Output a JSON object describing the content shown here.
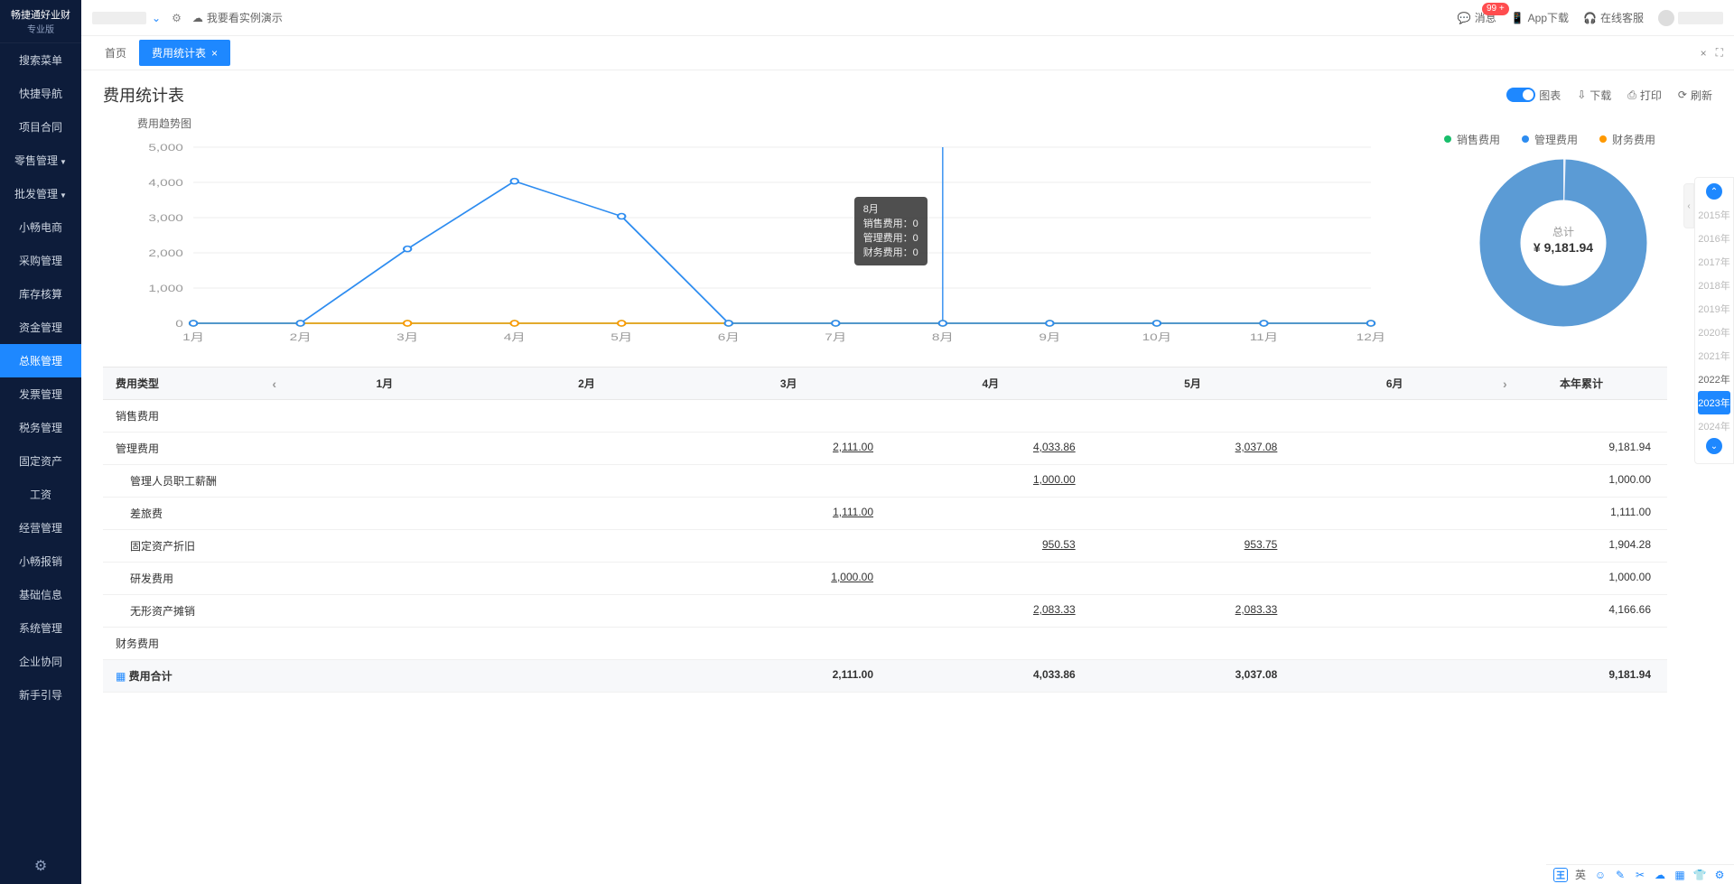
{
  "brand": {
    "name": "畅捷通好业财",
    "edition": "专业版"
  },
  "sidebar": {
    "items": [
      {
        "label": "搜索菜单",
        "has_sub": false
      },
      {
        "label": "快捷导航",
        "has_sub": false
      },
      {
        "label": "项目合同",
        "has_sub": false
      },
      {
        "label": "零售管理",
        "has_sub": true
      },
      {
        "label": "批发管理",
        "has_sub": true
      },
      {
        "label": "小畅电商",
        "has_sub": false
      },
      {
        "label": "采购管理",
        "has_sub": false
      },
      {
        "label": "库存核算",
        "has_sub": false
      },
      {
        "label": "资金管理",
        "has_sub": false
      },
      {
        "label": "总账管理",
        "has_sub": false,
        "active": true
      },
      {
        "label": "发票管理",
        "has_sub": false
      },
      {
        "label": "税务管理",
        "has_sub": false
      },
      {
        "label": "固定资产",
        "has_sub": false
      },
      {
        "label": "工资",
        "has_sub": false
      },
      {
        "label": "经营管理",
        "has_sub": false
      },
      {
        "label": "小畅报销",
        "has_sub": false
      },
      {
        "label": "基础信息",
        "has_sub": false
      },
      {
        "label": "系统管理",
        "has_sub": false
      },
      {
        "label": "企业协同",
        "has_sub": false
      },
      {
        "label": "新手引导",
        "has_sub": false
      }
    ]
  },
  "topbar": {
    "demo_label": "我要看实例演示",
    "messages": {
      "label": "消息",
      "badge": "99 +"
    },
    "download": "App下载",
    "service": "在线客服"
  },
  "tabs": {
    "home": "首页",
    "active": "费用统计表"
  },
  "page": {
    "title": "费用统计表",
    "actions": {
      "chart": "图表",
      "download": "下载",
      "print": "打印",
      "refresh": "刷新"
    }
  },
  "chart": {
    "title": "费用趋势图",
    "legend": [
      {
        "label": "销售费用",
        "color": "#19be6b"
      },
      {
        "label": "管理费用",
        "color": "#2d8cf0"
      },
      {
        "label": "财务费用",
        "color": "#ff9900"
      }
    ],
    "y_ticks": [
      "0",
      "1,000",
      "2,000",
      "3,000",
      "4,000",
      "5,000"
    ],
    "y_max": 5000,
    "x_labels": [
      "1月",
      "2月",
      "3月",
      "4月",
      "5月",
      "6月",
      "7月",
      "8月",
      "9月",
      "10月",
      "11月",
      "12月"
    ],
    "series_mgmt": [
      0,
      0,
      2111,
      4034,
      3037,
      0,
      0,
      0,
      0,
      0,
      0,
      0
    ],
    "series_sales": [
      0,
      0,
      0,
      0,
      0,
      0,
      0,
      0,
      0,
      0,
      0,
      0
    ],
    "series_fin": [
      0,
      0,
      0,
      0,
      0,
      0,
      0,
      0,
      0,
      0,
      0,
      0
    ],
    "hover_index": 7,
    "tooltip": {
      "title": "8月",
      "l1": "销售费用：0",
      "l2": "管理费用：0",
      "l3": "财务费用：0"
    },
    "donut": {
      "label": "总计",
      "value": "¥ 9,181.94",
      "color": "#5b9bd5",
      "bg": "#e8effa"
    }
  },
  "years": {
    "list": [
      "2015年",
      "2016年",
      "2017年",
      "2018年",
      "2019年",
      "2020年",
      "2021年",
      "2022年",
      "2023年",
      "2024年"
    ],
    "current": "2023年",
    "available": [
      "2022年",
      "2023年"
    ]
  },
  "table": {
    "type_header": "费用类型",
    "months": [
      "1月",
      "2月",
      "3月",
      "4月",
      "5月",
      "6月"
    ],
    "total_header": "本年累计",
    "rows": [
      {
        "label": "销售费用",
        "indent": 0,
        "vals": [
          "",
          "",
          "",
          "",
          "",
          ""
        ],
        "total": ""
      },
      {
        "label": "管理费用",
        "indent": 0,
        "vals": [
          "",
          "",
          "2,111.00",
          "4,033.86",
          "3,037.08",
          ""
        ],
        "total": "9,181.94",
        "link": true
      },
      {
        "label": "管理人员职工薪酬",
        "indent": 1,
        "vals": [
          "",
          "",
          "",
          "1,000.00",
          "",
          ""
        ],
        "total": "1,000.00",
        "link": true
      },
      {
        "label": "差旅费",
        "indent": 1,
        "vals": [
          "",
          "",
          "1,111.00",
          "",
          "",
          ""
        ],
        "total": "1,111.00",
        "link": true
      },
      {
        "label": "固定资产折旧",
        "indent": 1,
        "vals": [
          "",
          "",
          "",
          "950.53",
          "953.75",
          ""
        ],
        "total": "1,904.28",
        "link": true
      },
      {
        "label": "研发费用",
        "indent": 1,
        "vals": [
          "",
          "",
          "1,000.00",
          "",
          "",
          ""
        ],
        "total": "1,000.00",
        "link": true
      },
      {
        "label": "无形资产摊销",
        "indent": 1,
        "vals": [
          "",
          "",
          "",
          "2,083.33",
          "2,083.33",
          ""
        ],
        "total": "4,166.66",
        "link": true
      },
      {
        "label": "财务费用",
        "indent": 0,
        "vals": [
          "",
          "",
          "",
          "",
          "",
          ""
        ],
        "total": ""
      }
    ],
    "total_row": {
      "label": "费用合计",
      "vals": [
        "",
        "",
        "2,111.00",
        "4,033.86",
        "3,037.08",
        ""
      ],
      "total": "9,181.94"
    }
  },
  "ime": {
    "glyph": "王",
    "lang": "英"
  }
}
